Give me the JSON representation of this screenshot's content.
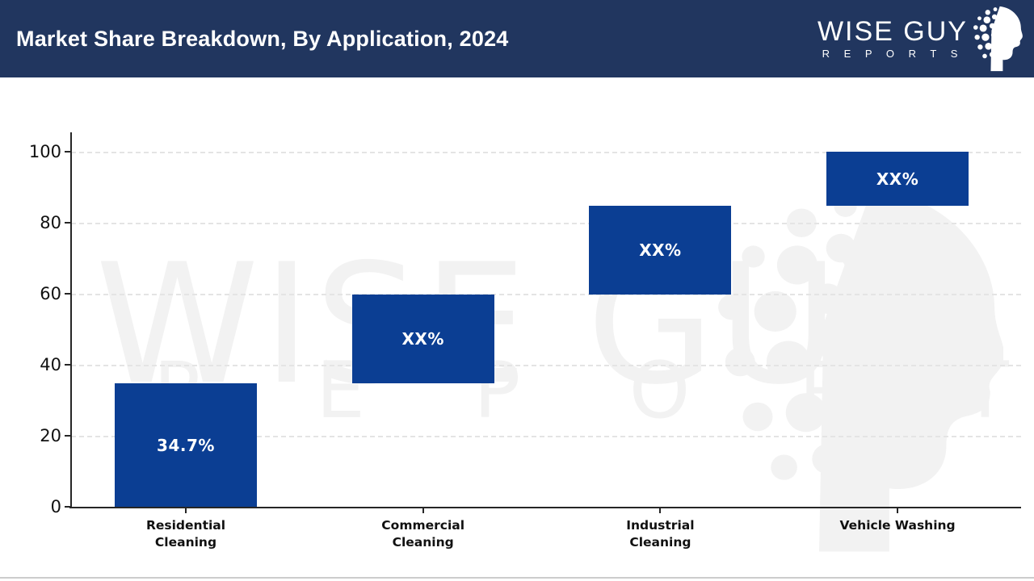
{
  "header": {
    "title": "Market Share Breakdown, By Application, 2024",
    "logo": {
      "wordmark": "WISE GUY",
      "subtitle": "R E P O R T S"
    }
  },
  "watermark": {
    "line1": "WISE GUY",
    "line2": "R E P O R T S"
  },
  "colors": {
    "header_bg": "#21365F",
    "bar_fill": "#0B3E93",
    "bar_label": "#FFFFFF",
    "grid": "#E4E4E4",
    "axis": "#262626",
    "watermark": "#F2F2F2"
  },
  "chart_data": {
    "type": "bar",
    "variant": "waterfall",
    "title": "Market Share Breakdown, By Application, 2024",
    "categories": [
      "Residential Cleaning",
      "Commercial Cleaning",
      "Industrial Cleaning",
      "Vehicle Washing"
    ],
    "category_lines": [
      [
        "Residential",
        "Cleaning"
      ],
      [
        "Commercial",
        "Cleaning"
      ],
      [
        "Industrial",
        "Cleaning"
      ],
      [
        "Vehicle Washing"
      ]
    ],
    "segments": [
      {
        "category": "Residential Cleaning",
        "start": 0,
        "end": 34.7,
        "label": "34.7%"
      },
      {
        "category": "Commercial Cleaning",
        "start": 34.7,
        "end": 59.7,
        "label": "XX%"
      },
      {
        "category": "Industrial Cleaning",
        "start": 59.7,
        "end": 84.7,
        "label": "XX%"
      },
      {
        "category": "Vehicle Washing",
        "start": 84.7,
        "end": 100,
        "label": "XX%"
      }
    ],
    "ylabel": "",
    "xlabel": "",
    "yticks": [
      0,
      20,
      40,
      60,
      80,
      100
    ],
    "ylim": [
      0,
      105
    ],
    "grid": "horizontal dashed",
    "legend": "none"
  }
}
